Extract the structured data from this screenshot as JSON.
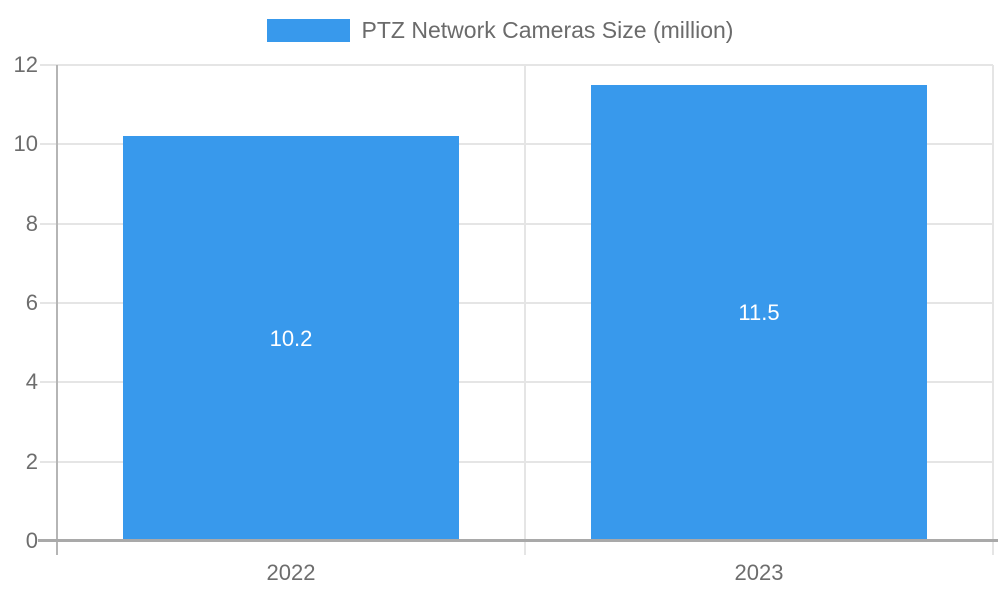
{
  "legend": {
    "label": "PTZ Network Cameras Size (million)"
  },
  "colors": {
    "bar": "#3899EC",
    "axis_line": "#b5b5b5",
    "baseline": "#a9a9a9",
    "gridline": "#e5e5e5",
    "tick_label": "#6d6d6d",
    "legend_label": "#6b6b6b",
    "value_label": "#ffffff",
    "background": "#ffffff"
  },
  "chart_data": {
    "type": "bar",
    "title": "PTZ Network Cameras Size (million)",
    "categories": [
      "2022",
      "2023"
    ],
    "series": [
      {
        "name": "PTZ Network Cameras Size (million)",
        "values": [
          10.2,
          11.5
        ]
      }
    ],
    "value_labels": [
      "10.2",
      "11.5"
    ],
    "xlabel": "",
    "ylabel": "",
    "ylim": [
      0,
      12
    ],
    "yticks": [
      0,
      2,
      4,
      6,
      8,
      10,
      12
    ],
    "grid": true,
    "legend_position": "top",
    "value_label_position": "center-inside",
    "bar_width_fraction": 0.36
  }
}
